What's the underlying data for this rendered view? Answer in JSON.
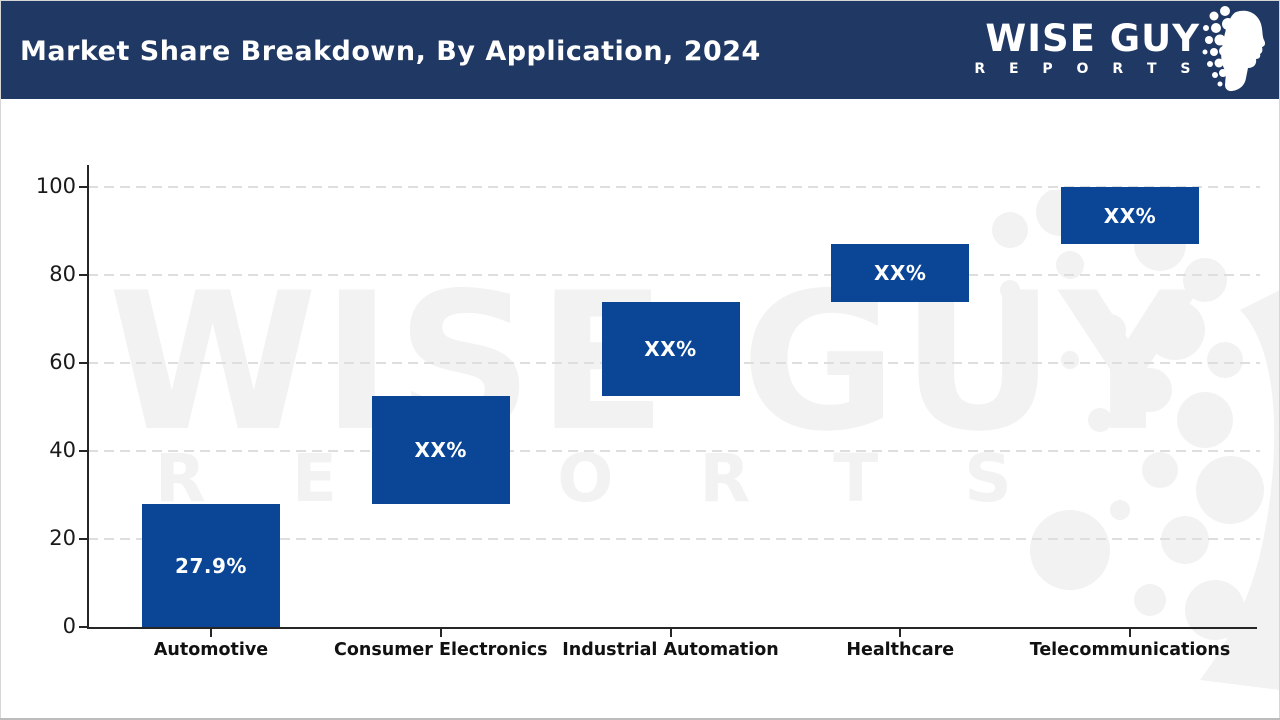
{
  "header": {
    "title": "Market Share Breakdown, By Application, 2024",
    "logo": {
      "line1": "WISE GUY",
      "line2": "R E P O R T S"
    }
  },
  "watermark": {
    "line1": "WISE GUY",
    "line2": "REPORTS"
  },
  "colors": {
    "header_bg": "#203864",
    "bar": "#0a4596",
    "grid": "#dedede",
    "axis": "#262626",
    "bar_label": "#ffffff",
    "watermark": "#f2f2f2"
  },
  "chart_data": {
    "type": "bar",
    "subtype": "waterfall",
    "title": "Market Share Breakdown, By Application, 2024",
    "categories": [
      "Automotive",
      "Consumer Electronics",
      "Industrial Automation",
      "Healthcare",
      "Telecommunications"
    ],
    "segments": [
      {
        "category": "Automotive",
        "start": 0,
        "end": 27.9,
        "size": 27.9,
        "label": "27.9%"
      },
      {
        "category": "Consumer Electronics",
        "start": 27.9,
        "end": 52.5,
        "size": 24.6,
        "label": "XX%"
      },
      {
        "category": "Industrial Automation",
        "start": 52.5,
        "end": 73.8,
        "size": 21.3,
        "label": "XX%"
      },
      {
        "category": "Healthcare",
        "start": 73.8,
        "end": 87.0,
        "size": 13.2,
        "label": "XX%"
      },
      {
        "category": "Telecommunications",
        "start": 87.0,
        "end": 100.0,
        "size": 13.0,
        "label": "XX%"
      }
    ],
    "xlabel": "",
    "ylabel": "",
    "ylim": [
      0,
      100
    ],
    "yticks": [
      0,
      20,
      40,
      60,
      80,
      100
    ],
    "grid": "horizontal-dashed",
    "legend": "none"
  }
}
